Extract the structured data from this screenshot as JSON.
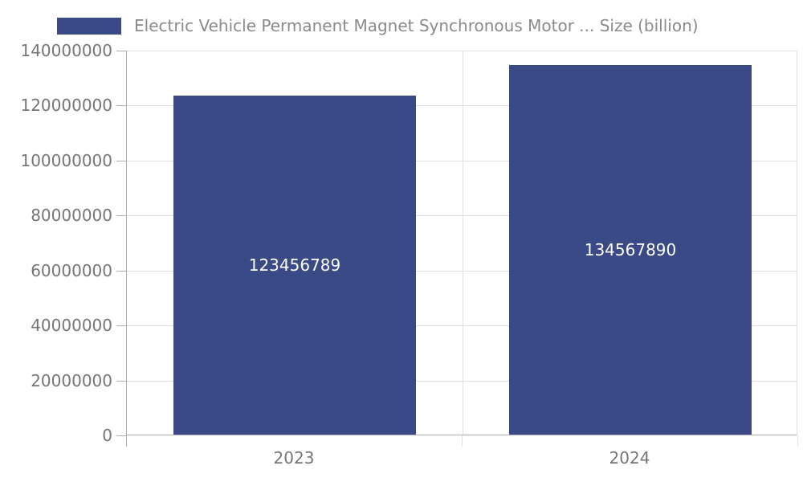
{
  "chart_data": {
    "type": "bar",
    "categories": [
      "2023",
      "2024"
    ],
    "values": [
      123456789,
      134567890
    ],
    "bar_labels": [
      "123456789",
      "134567890"
    ],
    "legend_label": "Electric Vehicle Permanent Magnet Synchronous Motor ... Size (billion)",
    "title": "",
    "xlabel": "",
    "ylabel": "",
    "ylim": [
      0,
      140000000
    ],
    "y_ticks": [
      0,
      20000000,
      40000000,
      60000000,
      80000000,
      100000000,
      120000000,
      140000000
    ],
    "y_tick_labels": [
      "0",
      "20000000",
      "40000000",
      "60000000",
      "80000000",
      "100000000",
      "120000000",
      "140000000"
    ],
    "grid": true,
    "legend_position": "top-left",
    "colors": {
      "bar": "#3A4A87",
      "bar_label": "#FFFFFF",
      "grid": "#E0E0E0",
      "axis": "#ADADAD",
      "tick_label": "#757575",
      "legend_text": "#8A8A8A",
      "background": "#FFFFFF"
    }
  }
}
